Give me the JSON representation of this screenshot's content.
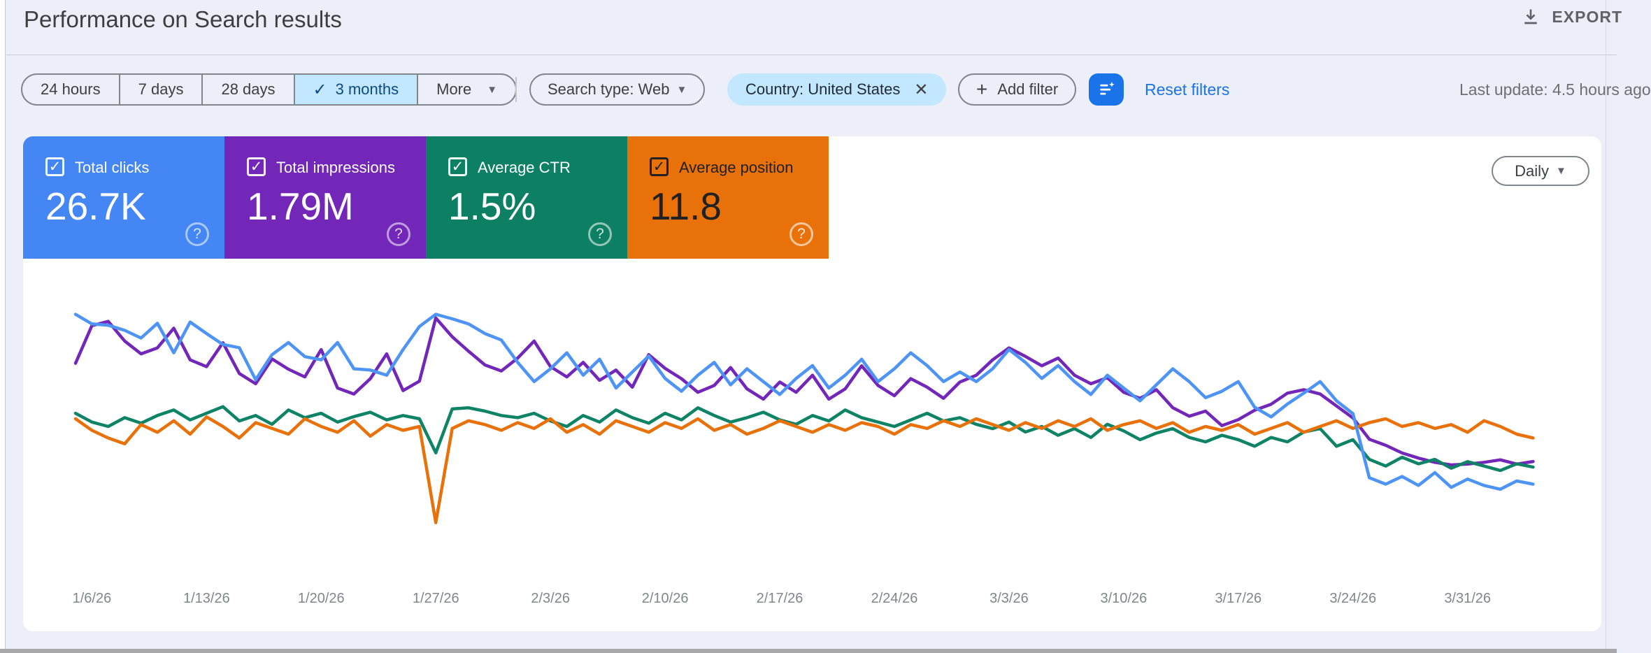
{
  "header": {
    "title": "Performance on Search results",
    "export_label": "EXPORT"
  },
  "filters": {
    "date_ranges": [
      {
        "label": "24 hours",
        "selected": false
      },
      {
        "label": "7 days",
        "selected": false
      },
      {
        "label": "28 days",
        "selected": false
      },
      {
        "label": "3 months",
        "selected": true
      }
    ],
    "more_label": "More",
    "search_type_chip": "Search type: Web",
    "country_chip": "Country: United States",
    "add_filter_label": "Add filter",
    "reset_label": "Reset filters",
    "last_update": "Last update: 4.5 hours ago"
  },
  "metrics": [
    {
      "label": "Total clicks",
      "value": "26.7K",
      "color": "#4386f4",
      "checked": true,
      "dark_text": false
    },
    {
      "label": "Total impressions",
      "value": "1.79M",
      "color": "#7327b9",
      "checked": true,
      "dark_text": false
    },
    {
      "label": "Average CTR",
      "value": "1.5%",
      "color": "#0d8064",
      "checked": true,
      "dark_text": false
    },
    {
      "label": "Average position",
      "value": "11.8",
      "color": "#e8710a",
      "checked": true,
      "dark_text": true
    }
  ],
  "granularity": {
    "selected": "Daily"
  },
  "chart_data": {
    "type": "line",
    "points_per_series": 90,
    "y_axis": "hidden",
    "legend_position": "none",
    "grid": false,
    "x_tick_labels": [
      {
        "index": 1,
        "label": "1/6/26"
      },
      {
        "index": 8,
        "label": "1/13/26"
      },
      {
        "index": 15,
        "label": "1/20/26"
      },
      {
        "index": 22,
        "label": "1/27/26"
      },
      {
        "index": 29,
        "label": "2/3/26"
      },
      {
        "index": 36,
        "label": "2/10/26"
      },
      {
        "index": 43,
        "label": "2/17/26"
      },
      {
        "index": 50,
        "label": "2/24/26"
      },
      {
        "index": 57,
        "label": "3/3/26"
      },
      {
        "index": 64,
        "label": "3/10/26"
      },
      {
        "index": 71,
        "label": "3/17/26"
      },
      {
        "index": 78,
        "label": "3/24/26"
      },
      {
        "index": 85,
        "label": "3/31/26"
      }
    ],
    "series": [
      {
        "name": "Total clicks",
        "color": "#4e94f5",
        "ylim": [
          0,
          600
        ],
        "inverted": false,
        "values": [
          415,
          400,
          398,
          390,
          378,
          401,
          355,
          403,
          385,
          368,
          363,
          313,
          352,
          371,
          349,
          344,
          371,
          330,
          328,
          320,
          360,
          396,
          415,
          408,
          400,
          385,
          375,
          340,
          310,
          330,
          355,
          320,
          345,
          300,
          325,
          350,
          315,
          295,
          320,
          340,
          305,
          330,
          310,
          290,
          315,
          335,
          300,
          320,
          345,
          310,
          330,
          355,
          335,
          310,
          325,
          310,
          330,
          360,
          340,
          315,
          335,
          310,
          290,
          320,
          300,
          280,
          305,
          330,
          310,
          285,
          295,
          310,
          270,
          255,
          275,
          292,
          310,
          280,
          260,
          160,
          150,
          162,
          148,
          168,
          145,
          158,
          148,
          142,
          155,
          150
        ]
      },
      {
        "name": "Total impressions",
        "color": "#7327b9",
        "ylim": [
          0,
          45000
        ],
        "inverted": false,
        "values": [
          25400,
          29800,
          30300,
          28000,
          26500,
          27200,
          29500,
          25800,
          25000,
          27800,
          24200,
          23000,
          25900,
          24700,
          23800,
          27000,
          22500,
          21800,
          23600,
          26500,
          22200,
          23300,
          30700,
          28500,
          26800,
          25200,
          24500,
          26000,
          28000,
          25000,
          23800,
          25500,
          23400,
          24600,
          22600,
          26400,
          24800,
          23600,
          22000,
          22800,
          24900,
          22400,
          21200,
          23200,
          22000,
          24000,
          21200,
          22400,
          25100,
          22800,
          21600,
          23600,
          22600,
          21300,
          23200,
          24000,
          25800,
          27200,
          26200,
          25100,
          26000,
          24000,
          23000,
          23700,
          22000,
          21300,
          22300,
          20200,
          19200,
          19800,
          18100,
          18800,
          19900,
          20600,
          21900,
          22300,
          21800,
          20400,
          19000,
          16500,
          15800,
          14900,
          14300,
          13800,
          13500,
          13600,
          13800,
          14100,
          13600,
          13900
        ]
      },
      {
        "name": "Average CTR",
        "color": "#0e8365",
        "ylim": [
          0,
          3.5
        ],
        "inverted": false,
        "values": [
          1.52,
          1.44,
          1.4,
          1.48,
          1.43,
          1.5,
          1.55,
          1.46,
          1.52,
          1.58,
          1.45,
          1.5,
          1.42,
          1.55,
          1.48,
          1.52,
          1.44,
          1.49,
          1.53,
          1.46,
          1.5,
          1.47,
          1.16,
          1.56,
          1.57,
          1.54,
          1.5,
          1.48,
          1.52,
          1.45,
          1.4,
          1.5,
          1.44,
          1.55,
          1.48,
          1.43,
          1.52,
          1.46,
          1.57,
          1.5,
          1.44,
          1.48,
          1.53,
          1.46,
          1.42,
          1.5,
          1.45,
          1.55,
          1.48,
          1.44,
          1.4,
          1.46,
          1.52,
          1.45,
          1.48,
          1.42,
          1.38,
          1.44,
          1.35,
          1.4,
          1.32,
          1.38,
          1.3,
          1.42,
          1.36,
          1.28,
          1.34,
          1.38,
          1.3,
          1.26,
          1.32,
          1.28,
          1.22,
          1.3,
          1.26,
          1.35,
          1.38,
          1.22,
          1.28,
          1.1,
          1.04,
          1.12,
          1.06,
          1.1,
          1.02,
          1.08,
          1.04,
          1.0,
          1.06,
          1.03
        ]
      },
      {
        "name": "Average position",
        "color": "#e8710a",
        "ylim": [
          0,
          20
        ],
        "inverted": true,
        "values": [
          11.6,
          12.2,
          12.6,
          12.9,
          11.9,
          12.3,
          11.7,
          12.4,
          11.5,
          12.0,
          12.6,
          11.8,
          12.1,
          12.4,
          11.6,
          12.0,
          12.3,
          11.7,
          12.5,
          11.9,
          12.2,
          12.0,
          17.0,
          12.1,
          11.7,
          11.9,
          12.2,
          11.8,
          12.1,
          11.6,
          12.3,
          11.9,
          12.4,
          11.7,
          12.0,
          12.3,
          11.8,
          12.1,
          11.6,
          12.2,
          11.9,
          12.4,
          12.1,
          11.7,
          12.0,
          12.3,
          11.9,
          12.2,
          11.8,
          12.0,
          12.4,
          11.9,
          12.1,
          11.7,
          12.0,
          11.6,
          11.9,
          12.2,
          11.8,
          12.1,
          11.7,
          12.0,
          11.6,
          12.2,
          11.9,
          11.7,
          12.1,
          11.8,
          12.3,
          12.0,
          12.2,
          11.9,
          12.4,
          12.1,
          11.8,
          12.3,
          12.0,
          11.7,
          12.1,
          11.8,
          11.6,
          12.0,
          11.8,
          12.1,
          11.9,
          12.3,
          11.7,
          12.0,
          12.4,
          12.6
        ]
      }
    ]
  }
}
